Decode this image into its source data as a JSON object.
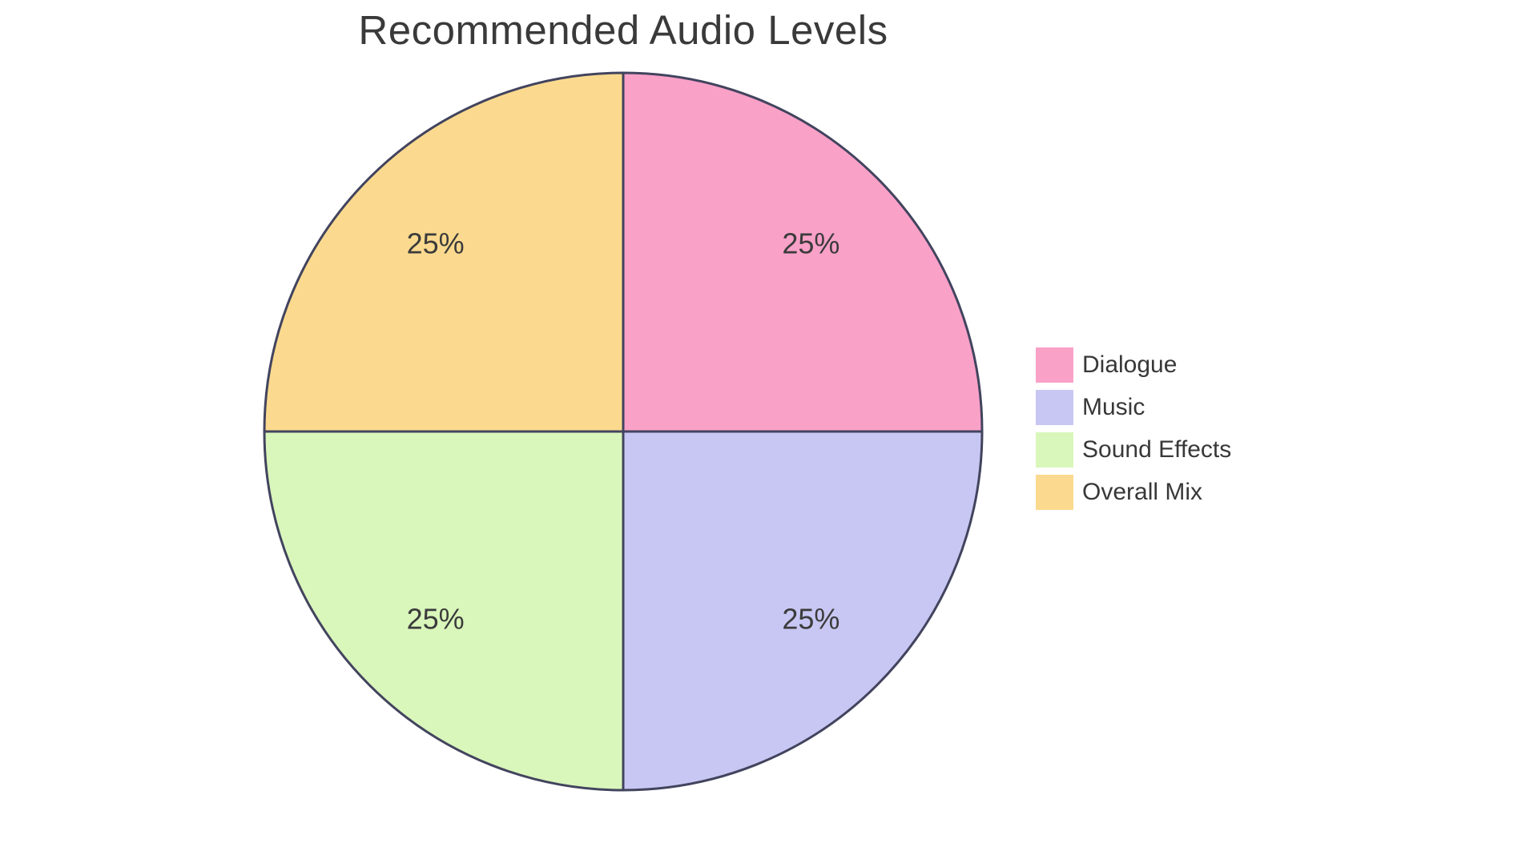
{
  "page": {
    "background_color": "#ffffff"
  },
  "chart_data": {
    "type": "pie",
    "title": "Recommended Audio Levels",
    "slices": [
      {
        "label": "Dialogue",
        "value": 25,
        "pct_label": "25%",
        "color": "#faa1c8"
      },
      {
        "label": "Music",
        "value": 25,
        "pct_label": "25%",
        "color": "#c8c7f3"
      },
      {
        "label": "Sound Effects",
        "value": 25,
        "pct_label": "25%",
        "color": "#d9f6bb"
      },
      {
        "label": "Overall Mix",
        "value": 25,
        "pct_label": "25%",
        "color": "#fbda8f"
      }
    ],
    "start_angle": "top",
    "direction": "clockwise",
    "radius_px": 448,
    "pct_label_distance": 0.74,
    "pct_label_color": "#3b3b3b",
    "stroke_color": "#42445e",
    "stroke_width": 3,
    "title_color": "#3a3a3a",
    "legend_position": "right",
    "legend_text_color": "#383838"
  }
}
